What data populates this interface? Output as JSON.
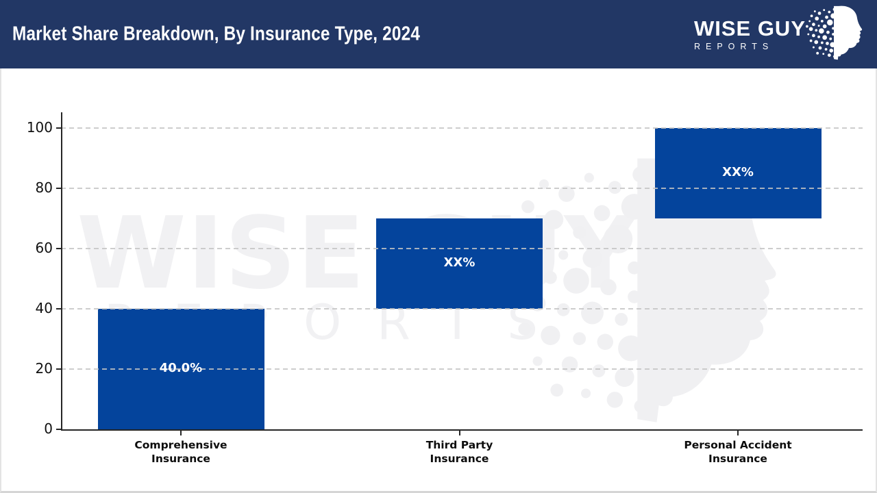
{
  "header": {
    "title": "Market Share Breakdown, By Insurance Type, 2024",
    "logo": {
      "name": "WISE GUY",
      "sub": "REPORTS"
    }
  },
  "watermark": {
    "name": "WISE GUY",
    "sub": "REPORTS"
  },
  "chart_data": {
    "type": "bar",
    "variant": "floating-waterfall",
    "title": "Market Share Breakdown, By Insurance Type, 2024",
    "categories": [
      "Comprehensive Insurance",
      "Third Party Insurance",
      "Personal Accident Insurance"
    ],
    "category_lines": [
      [
        "Comprehensive",
        "Insurance"
      ],
      [
        "Third Party",
        "Insurance"
      ],
      [
        "Personal Accident",
        "Insurance"
      ]
    ],
    "bars": [
      {
        "start": 0,
        "end": 40,
        "label": "40.0%"
      },
      {
        "start": 40,
        "end": 70,
        "label": "XX%"
      },
      {
        "start": 70,
        "end": 100,
        "label": "XX%"
      }
    ],
    "yticks": [
      0,
      20,
      40,
      60,
      80,
      100
    ],
    "ylim": [
      0,
      105
    ],
    "xlabel": "",
    "ylabel": "",
    "legend": null,
    "grid": "horizontal-dashed",
    "colors": {
      "bar": "#04449c",
      "grid": "#c4c4c4",
      "axis": "#262626",
      "header_bg": "#223765",
      "watermark": "#f1f1f3",
      "bar_label_text": "#ffffff"
    }
  }
}
